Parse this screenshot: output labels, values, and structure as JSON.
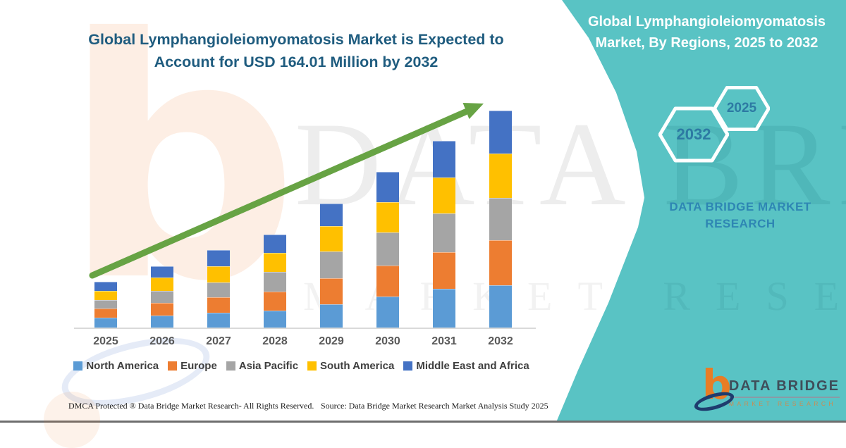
{
  "colors": {
    "teal_background": "#59c3c4",
    "arrow_green": "#67a344",
    "left_title_blue": "#1f5c7f",
    "axis_gray": "#d9d9d9",
    "year_label_gray": "#595959"
  },
  "left": {
    "title_line1": "Global Lymphangioleiomyomatosis Market is Expected to",
    "title_line2": "Account for USD 164.01 Million by 2032"
  },
  "chart_data": {
    "type": "bar",
    "stacked": true,
    "units": "relative height units (no y-axis shown on chart)",
    "title": "Global Lymphangioleiomyomatosis Market is Expected to Account for USD 164.01 Million by 2032",
    "xlabel": "",
    "ylabel": "",
    "grid": false,
    "legend_position": "bottom",
    "annotation": "green upward trend arrow from 2025 to 2032",
    "stated_total_2032_usd_million": 164.01,
    "categories": [
      "2025",
      "2026",
      "2027",
      "2028",
      "2029",
      "2030",
      "2031",
      "2032"
    ],
    "series": [
      {
        "name": "North America",
        "color": "#5b9bd5",
        "values": [
          15,
          18,
          22,
          25,
          34,
          45,
          56,
          61
        ]
      },
      {
        "name": "Europe",
        "color": "#ed7d31",
        "values": [
          13,
          18,
          22,
          27,
          37,
          44,
          52,
          64
        ]
      },
      {
        "name": "Asia Pacific",
        "color": "#a5a5a5",
        "values": [
          12,
          17,
          21,
          28,
          38,
          47,
          55,
          60
        ]
      },
      {
        "name": "South America",
        "color": "#ffc000",
        "values": [
          13,
          19,
          23,
          27,
          36,
          43,
          51,
          63
        ]
      },
      {
        "name": "Middle East and Africa",
        "color": "#4472c4",
        "values": [
          13,
          16,
          23,
          26,
          32,
          43,
          52,
          61
        ]
      }
    ],
    "totals": [
      66,
      88,
      111,
      133,
      177,
      222,
      266,
      309
    ]
  },
  "footer": {
    "dmca": "DMCA Protected ® Data Bridge Market Research-  All Rights Reserved.",
    "source": "Source: Data Bridge Market Research  Market Analysis Study 2025"
  },
  "right": {
    "title_line1": "Global Lymphangioleiomyomatosis",
    "title_line2": "Market, By Regions, 2025 to 2032",
    "hexagons": [
      {
        "year": "2032"
      },
      {
        "year": "2025"
      }
    ],
    "brand_text": "DATA BRIDGE MARKET RESEARCH",
    "logo": {
      "title": "DATA BRIDGE",
      "subtitle": "MARKET RESEARCH"
    }
  },
  "watermark": {
    "letter": "b",
    "line1": "DATA BRIDGE",
    "line2": "MARKET RESEARCH"
  }
}
